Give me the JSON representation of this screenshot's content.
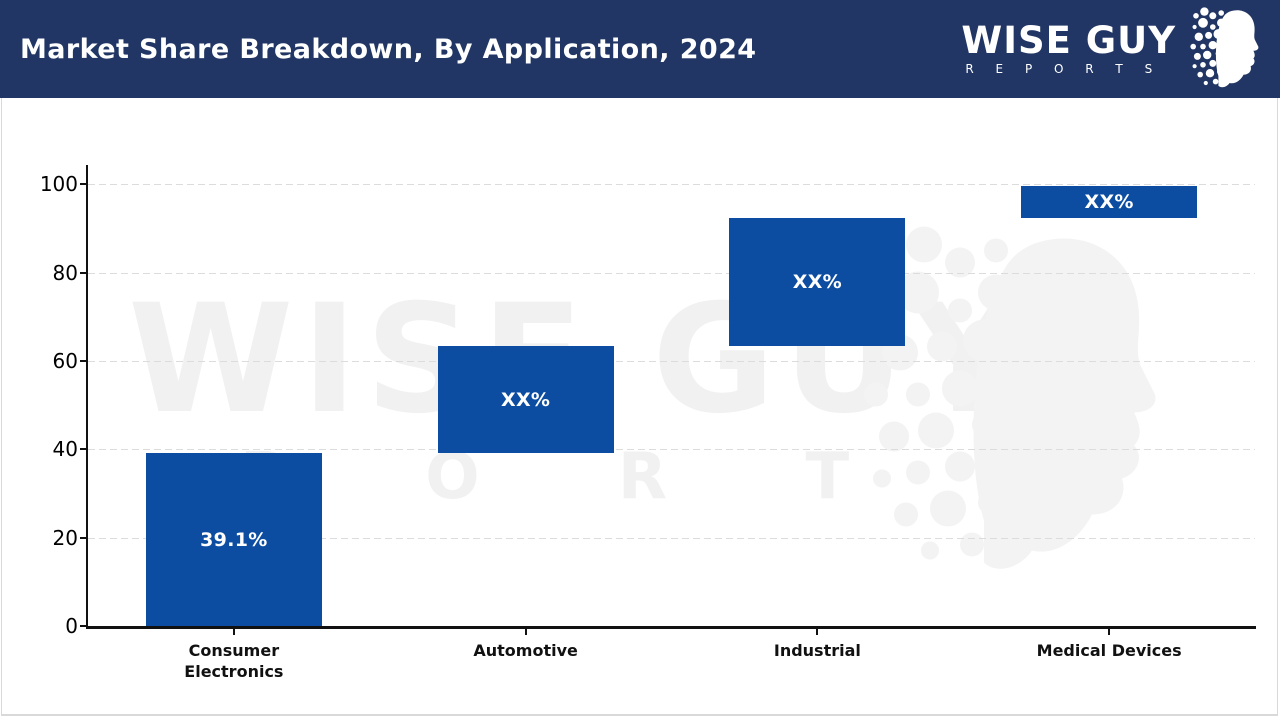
{
  "header": {
    "title": "Market Share Breakdown, By Application, 2024",
    "logo": {
      "line1": "WISE GUY",
      "line2": "R E P O R T S"
    }
  },
  "watermark": {
    "line1": "WISE GUY",
    "line2": "P O R T S"
  },
  "chart_data": {
    "type": "bar",
    "subtype": "waterfall",
    "title": "Market Share Breakdown, By Application, 2024",
    "categories": [
      "Consumer Electronics",
      "Automotive",
      "Industrial",
      "Medical Devices"
    ],
    "bars": [
      {
        "category": "Consumer Electronics",
        "start": 0,
        "end": 39.1,
        "label": "39.1%"
      },
      {
        "category": "Automotive",
        "start": 39.1,
        "end": 63.3,
        "label": "XX%"
      },
      {
        "category": "Industrial",
        "start": 63.3,
        "end": 92.4,
        "label": "XX%"
      },
      {
        "category": "Medical Devices",
        "start": 92.4,
        "end": 99.7,
        "label": "XX%"
      }
    ],
    "ylim": [
      0,
      100
    ],
    "yticks": [
      0,
      20,
      40,
      60,
      80,
      100
    ],
    "xlabel": "",
    "ylabel": "",
    "grid": "horizontal-dashed",
    "legend": "none",
    "colors": {
      "bar": "#0d4da1",
      "bar_label": "#ffffff",
      "header_bg": "#213664",
      "grid": "#dcdcdc",
      "axis": "#111111",
      "watermark": "#f1f1f1"
    }
  }
}
